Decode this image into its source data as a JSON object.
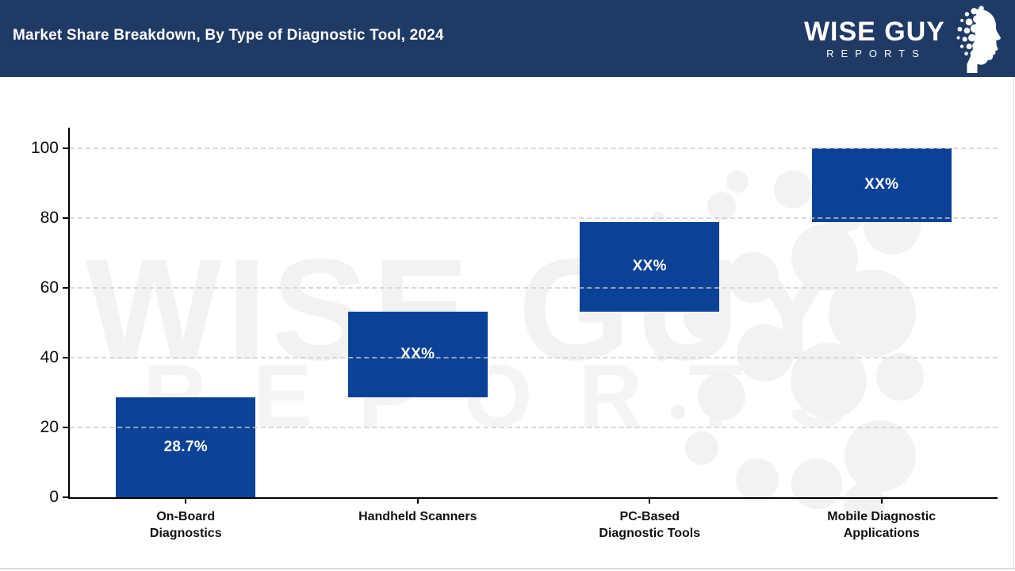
{
  "header": {
    "title": "Market Share Breakdown, By Type of Diagnostic Tool, 2024",
    "logo": {
      "line1": "WISE GUY",
      "line2": "REPORTS"
    }
  },
  "watermark": {
    "line1": "WISE GUY",
    "line2": "REPORTS"
  },
  "chart_data": {
    "type": "bar",
    "subtype": "waterfall",
    "title": "Market Share Breakdown, By Type of Diagnostic Tool, 2024",
    "xlabel": "",
    "ylabel": "",
    "categories": [
      "On-Board\nDiagnostics",
      "Handheld Scanners",
      "PC-Based\nDiagnostic Tools",
      "Mobile Diagnostic\nApplications"
    ],
    "segments": [
      {
        "category": "On-Board Diagnostics",
        "start": 0,
        "end": 28.7,
        "label": "28.7%"
      },
      {
        "category": "Handheld Scanners",
        "start": 28.7,
        "end": 53.2,
        "label": "XX%"
      },
      {
        "category": "PC-Based Diagnostic Tools",
        "start": 53.2,
        "end": 78.9,
        "label": "XX%"
      },
      {
        "category": "Mobile Diagnostic Applications",
        "start": 78.9,
        "end": 100,
        "label": "XX%"
      }
    ],
    "yticks": [
      0,
      20,
      40,
      60,
      80,
      100
    ],
    "ylim": [
      0,
      106
    ],
    "grid": {
      "axis": "y",
      "style": "dashed"
    },
    "legend": "none",
    "colors": {
      "bar": "#0B4297",
      "bar_label": "#FFFFFF",
      "header_bg": "#203A66",
      "grid": "#DFDFDF",
      "axis": "#000000",
      "tick_label": "#0A0A0A",
      "watermark": "#F2F2F2"
    }
  }
}
